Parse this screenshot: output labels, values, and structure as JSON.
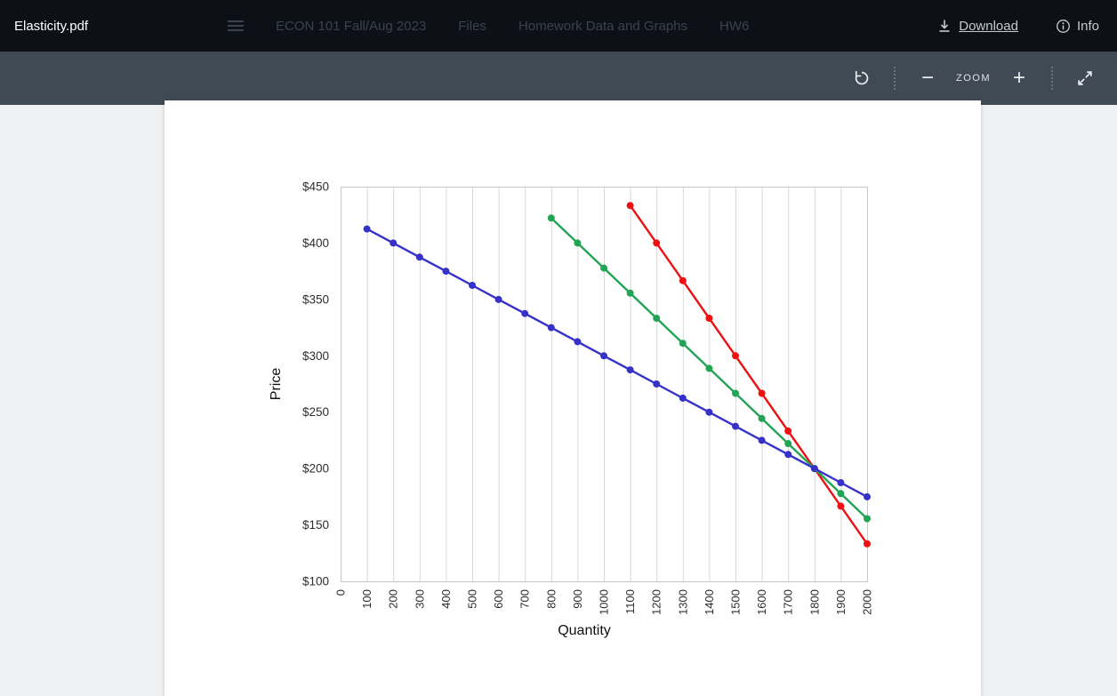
{
  "header": {
    "file_name": "Elasticity.pdf",
    "download_label": "Download",
    "info_label": "Info",
    "ghost_breadcrumb": {
      "course": "ECON 101 Fall/Aug 2023",
      "files": "Files",
      "folder": "Homework Data and Graphs",
      "assignment": "HW6"
    }
  },
  "toolbar": {
    "zoom_label": "ZOOM"
  },
  "chart_data": {
    "type": "line",
    "title": "",
    "xlabel": "Quantity",
    "ylabel": "Price",
    "xlim": [
      0,
      2000
    ],
    "ylim": [
      100,
      450
    ],
    "grid": "vertical",
    "legend": "none",
    "x_ticks": [
      0,
      100,
      200,
      300,
      400,
      500,
      600,
      700,
      800,
      900,
      1000,
      1100,
      1200,
      1300,
      1400,
      1500,
      1600,
      1700,
      1800,
      1900,
      2000
    ],
    "y_ticks": [
      100,
      150,
      200,
      250,
      300,
      350,
      400,
      450
    ],
    "y_tick_labels": [
      "$100",
      "$150",
      "$200",
      "$250",
      "$300",
      "$350",
      "$400",
      "$450"
    ],
    "series": [
      {
        "name": "demand-blue",
        "color": "#3632c8",
        "x_start": 100,
        "x_step": 100,
        "values": [
          412.5,
          400,
          387.5,
          375,
          362.5,
          350,
          337.5,
          325,
          312.5,
          300,
          287.5,
          275,
          262.5,
          250,
          237.5,
          225,
          212.5,
          200,
          187.5,
          175
        ]
      },
      {
        "name": "demand-green",
        "color": "#23a455",
        "x_start": 800,
        "x_step": 100,
        "values": [
          422.2,
          400,
          377.8,
          355.6,
          333.3,
          311.1,
          288.9,
          266.7,
          244.4,
          222.2,
          200,
          177.8,
          155.6
        ]
      },
      {
        "name": "demand-red",
        "color": "#ee1111",
        "x_start": 1100,
        "x_step": 100,
        "values": [
          433.3,
          400,
          366.7,
          333.3,
          300,
          266.7,
          233.3,
          200,
          166.7,
          133.3
        ]
      }
    ]
  }
}
